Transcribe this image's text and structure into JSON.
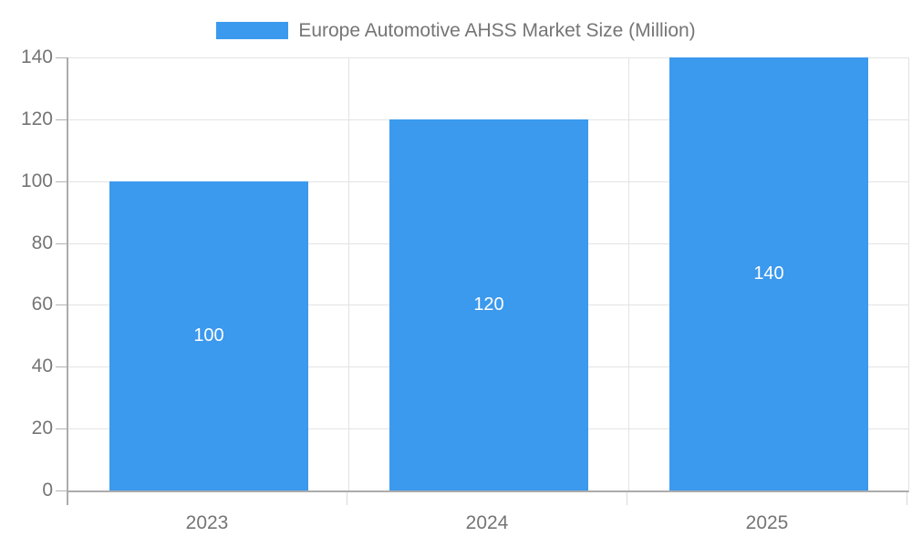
{
  "legend": {
    "label": "Europe Automotive AHSS Market Size (Million)"
  },
  "chart_data": {
    "type": "bar",
    "title": "Europe Automotive AHSS Market Size (Million)",
    "categories": [
      "2023",
      "2024",
      "2025"
    ],
    "values": [
      100,
      120,
      140
    ],
    "data_labels": [
      "100",
      "120",
      "140"
    ],
    "series": [
      {
        "name": "Europe Automotive AHSS Market Size (Million)",
        "values": [
          100,
          120,
          140
        ]
      }
    ],
    "xlabel": "",
    "ylabel": "",
    "ylim": [
      0,
      140
    ],
    "yticks": [
      0,
      20,
      40,
      60,
      80,
      100,
      120,
      140
    ],
    "grid": true,
    "legend_position": "top",
    "colors": {
      "bar": "#3B99EE",
      "bar_label": "#FFFFFF",
      "grid": "#E3E3E3",
      "axis_line": "#ABABAB",
      "tick_text": "#757575"
    }
  }
}
